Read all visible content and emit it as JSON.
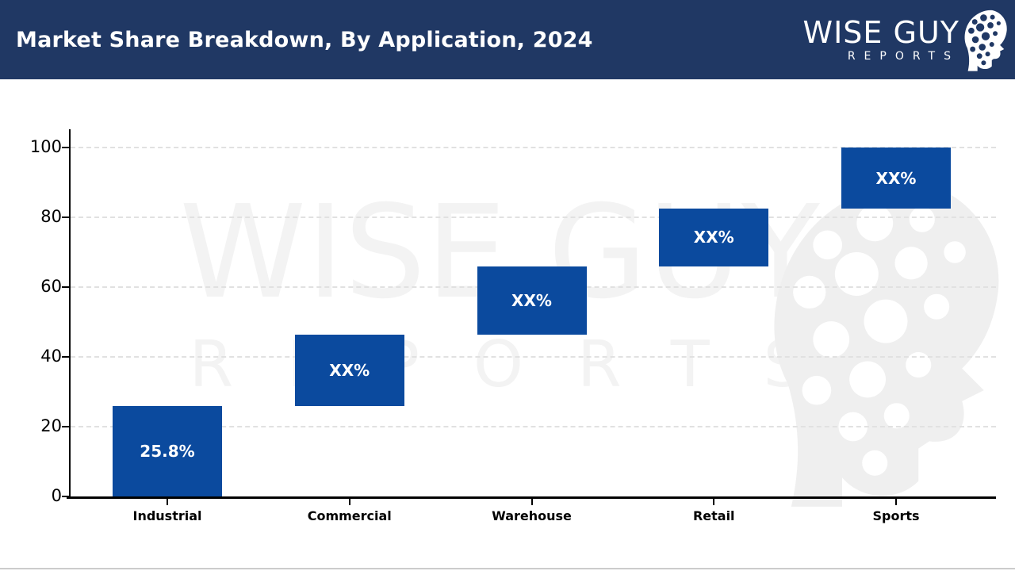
{
  "header": {
    "title": "Market Share Breakdown, By Application, 2024",
    "logo": {
      "line1": "WISE GUY",
      "line2": "REPORTS"
    }
  },
  "watermark": {
    "line1": "WISE GUY",
    "line2": "REPORTS"
  },
  "chart_data": {
    "type": "bar",
    "subtype": "waterfall-floating-bars",
    "title": "Market Share Breakdown, By Application, 2024",
    "categories": [
      "Industrial",
      "Commercial",
      "Warehouse",
      "Retail",
      "Sports"
    ],
    "segments": [
      {
        "category": "Industrial",
        "start": 0,
        "end": 25.8,
        "label": "25.8%"
      },
      {
        "category": "Commercial",
        "start": 25.8,
        "end": 46.4,
        "label": "XX%"
      },
      {
        "category": "Warehouse",
        "start": 46.4,
        "end": 66.0,
        "label": "XX%"
      },
      {
        "category": "Retail",
        "start": 66.0,
        "end": 82.5,
        "label": "XX%"
      },
      {
        "category": "Sports",
        "start": 82.5,
        "end": 100,
        "label": "XX%"
      }
    ],
    "xlabel": "",
    "ylabel": "",
    "ylim": [
      0,
      100
    ],
    "yticks": [
      0,
      20,
      40,
      60,
      80,
      100
    ],
    "grid": "horizontal-dashed",
    "legend": "none",
    "bar_color": "#0B4A9E",
    "bar_label_color": "#FFFFFF"
  },
  "colors": {
    "header_bg": "#203864",
    "header_text": "#FFFFFF",
    "axis": "#000000",
    "gridline": "#E1E1E1",
    "watermark": "#F3F3F3",
    "bottom_rule": "#CCCCCC"
  }
}
